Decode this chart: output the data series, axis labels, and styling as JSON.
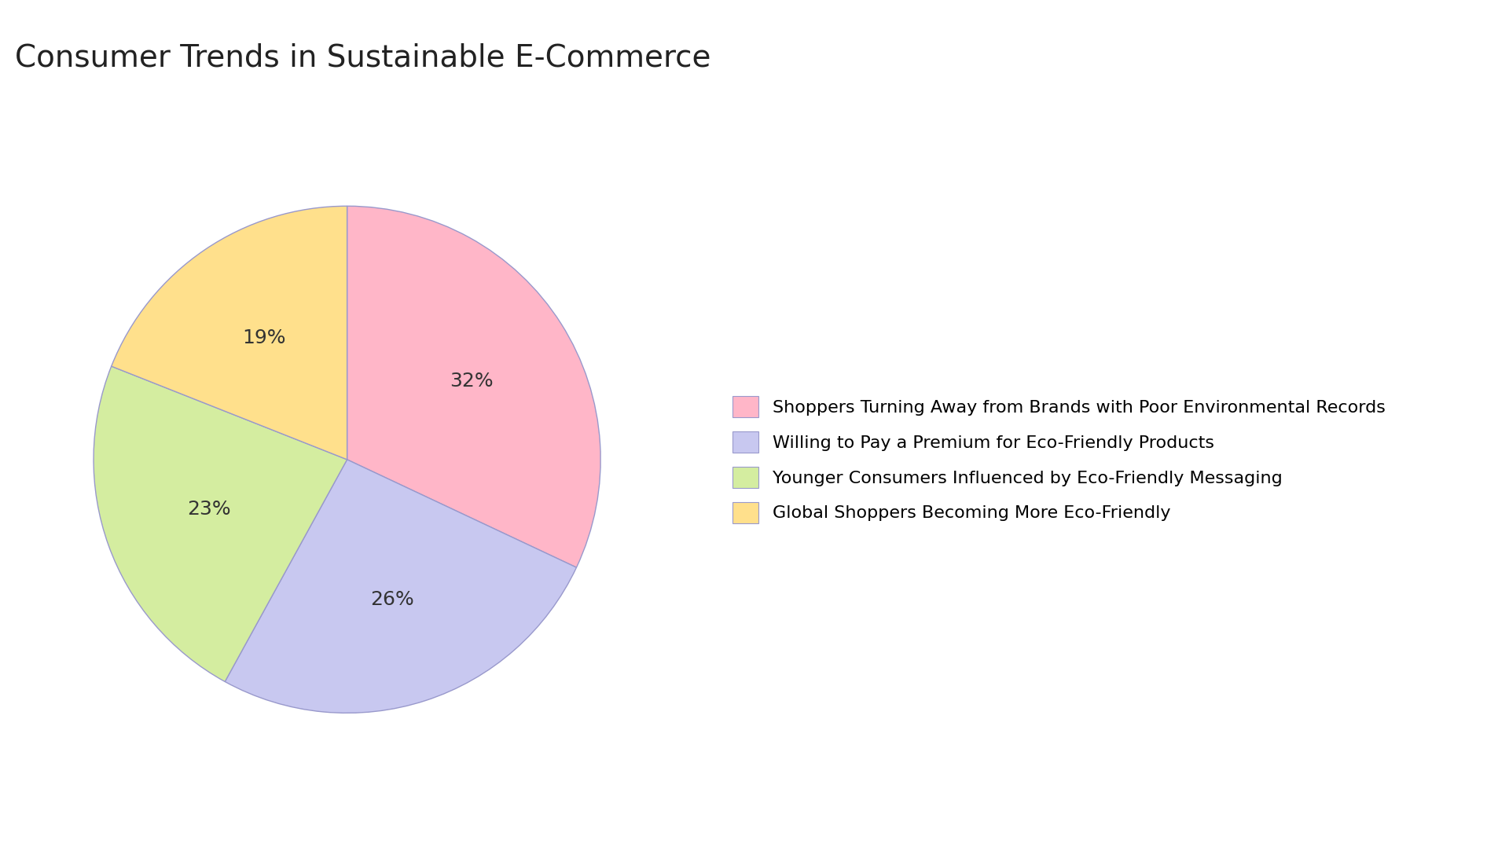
{
  "title": "Consumer Trends in Sustainable E-Commerce",
  "labels": [
    "Shoppers Turning Away from Brands with Poor Environmental Records",
    "Willing to Pay a Premium for Eco-Friendly Products",
    "Younger Consumers Influenced by Eco-Friendly Messaging",
    "Global Shoppers Becoming More Eco-Friendly"
  ],
  "values": [
    32,
    26,
    23,
    19
  ],
  "colors": [
    "#FFB6C8",
    "#C8C8F0",
    "#D4EDA0",
    "#FFE08C"
  ],
  "edge_color": "#9999CC",
  "pct_labels": [
    "32%",
    "26%",
    "23%",
    "19%"
  ],
  "title_fontsize": 28,
  "label_fontsize": 16,
  "pct_fontsize": 18,
  "background_color": "#FFFFFF",
  "startangle": 90
}
